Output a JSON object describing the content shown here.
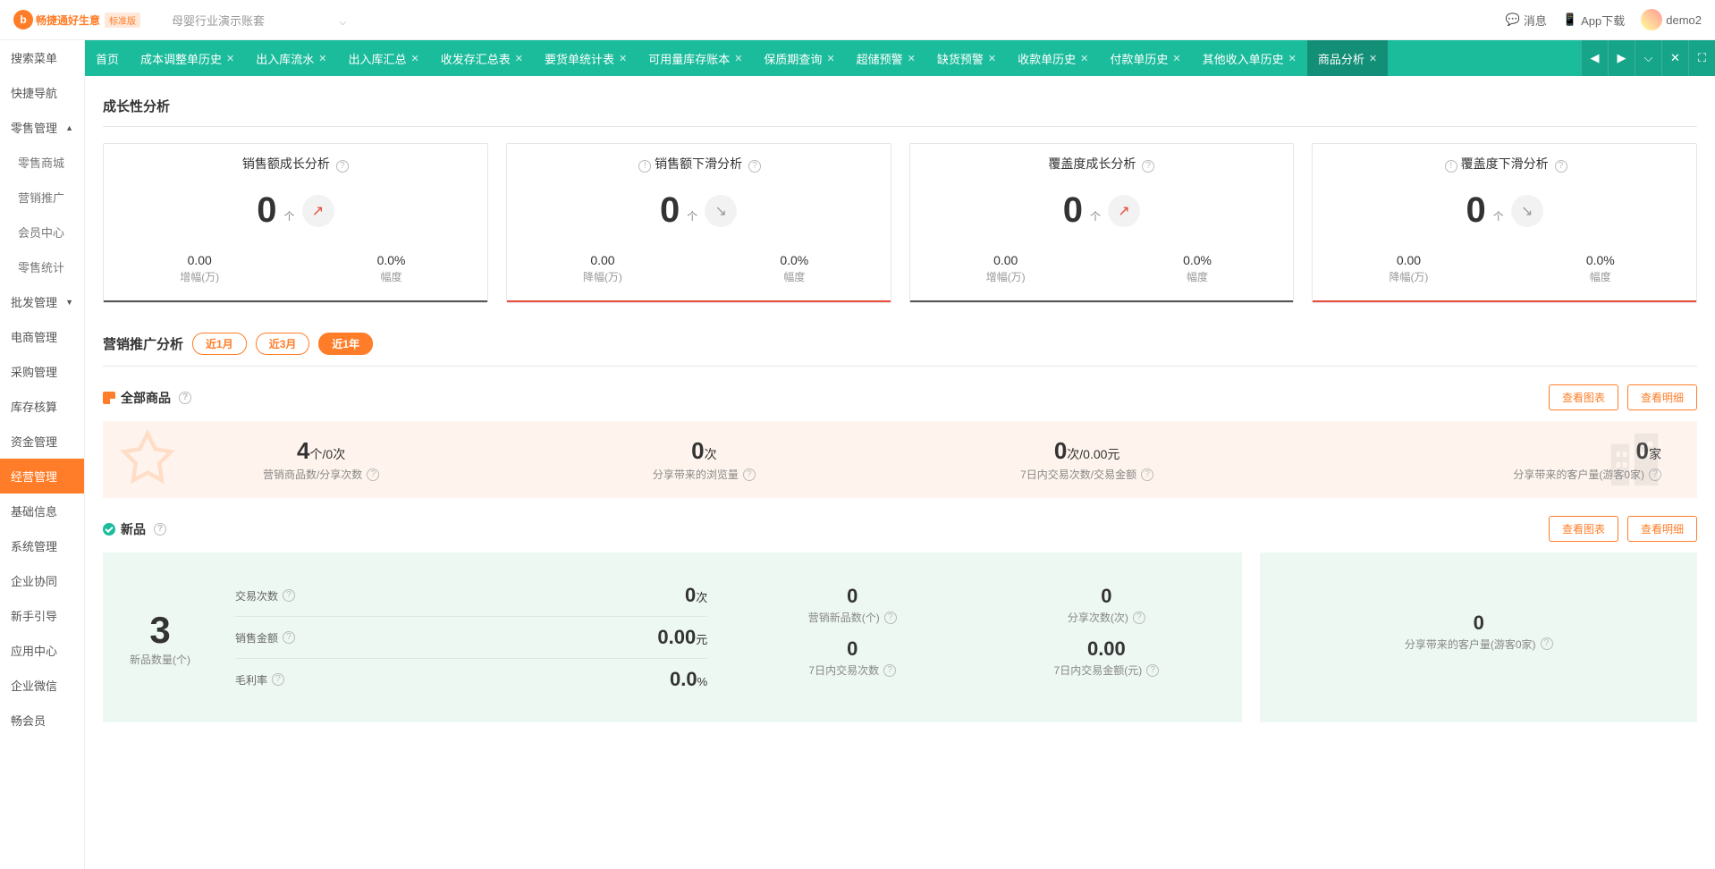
{
  "header": {
    "logo_text": "畅捷通好生意",
    "version_badge": "标准版",
    "account_name": "母婴行业演示账套",
    "messages_label": "消息",
    "app_download_label": "App下载",
    "username": "demo2"
  },
  "sidebar": {
    "items": [
      {
        "label": "搜索菜单",
        "type": "item"
      },
      {
        "label": "快捷导航",
        "type": "item"
      },
      {
        "label": "零售管理",
        "type": "expand",
        "expanded": true
      },
      {
        "label": "零售商城",
        "type": "sub"
      },
      {
        "label": "营销推广",
        "type": "sub"
      },
      {
        "label": "会员中心",
        "type": "sub"
      },
      {
        "label": "零售统计",
        "type": "sub"
      },
      {
        "label": "批发管理",
        "type": "expand",
        "expanded": false
      },
      {
        "label": "电商管理",
        "type": "item"
      },
      {
        "label": "采购管理",
        "type": "item"
      },
      {
        "label": "库存核算",
        "type": "item"
      },
      {
        "label": "资金管理",
        "type": "item"
      },
      {
        "label": "经营管理",
        "type": "active"
      },
      {
        "label": "基础信息",
        "type": "item"
      },
      {
        "label": "系统管理",
        "type": "item"
      },
      {
        "label": "企业协同",
        "type": "item"
      },
      {
        "label": "新手引导",
        "type": "item"
      },
      {
        "label": "应用中心",
        "type": "item"
      },
      {
        "label": "企业微信",
        "type": "item"
      },
      {
        "label": "畅会员",
        "type": "item"
      }
    ]
  },
  "tabs": {
    "home": "首页",
    "list": [
      "成本调整单历史",
      "出入库流水",
      "出入库汇总",
      "收发存汇总表",
      "要货单统计表",
      "可用量库存账本",
      "保质期查询",
      "超储预警",
      "缺货预警",
      "收款单历史",
      "付款单历史",
      "其他收入单历史",
      "商品分析"
    ],
    "active_index": 12
  },
  "section1": {
    "title": "成长性分析",
    "cards": [
      {
        "title": "销售额成长分析",
        "num": "0",
        "unit": "个",
        "trend": "up",
        "line": "gray",
        "stat1_val": "0.00",
        "stat1_label": "增幅(万)",
        "stat2_val": "0.0%",
        "stat2_label": "幅度",
        "has_icon": false
      },
      {
        "title": "销售额下滑分析",
        "num": "0",
        "unit": "个",
        "trend": "down",
        "line": "red",
        "stat1_val": "0.00",
        "stat1_label": "降幅(万)",
        "stat2_val": "0.0%",
        "stat2_label": "幅度",
        "has_icon": true
      },
      {
        "title": "覆盖度成长分析",
        "num": "0",
        "unit": "个",
        "trend": "up",
        "line": "gray",
        "stat1_val": "0.00",
        "stat1_label": "增幅(万)",
        "stat2_val": "0.0%",
        "stat2_label": "幅度",
        "has_icon": false
      },
      {
        "title": "覆盖度下滑分析",
        "num": "0",
        "unit": "个",
        "trend": "down",
        "line": "red",
        "stat1_val": "0.00",
        "stat1_label": "降幅(万)",
        "stat2_val": "0.0%",
        "stat2_label": "幅度",
        "has_icon": true
      }
    ]
  },
  "section2": {
    "title": "营销推广分析",
    "pills": [
      "近1月",
      "近3月",
      "近1年"
    ],
    "active_pill": 2,
    "view_chart_btn": "查看图表",
    "view_detail_btn": "查看明细"
  },
  "all_products": {
    "title": "全部商品",
    "cols": [
      {
        "main": "4",
        "suffix": "个/0次",
        "desc": "营销商品数/分享次数"
      },
      {
        "main": "0",
        "suffix": "次",
        "desc": "分享带来的浏览量"
      },
      {
        "main": "0",
        "suffix": "次/0.00元",
        "desc": "7日内交易次数/交易金额"
      },
      {
        "main": "0",
        "suffix": "家",
        "desc": "分享带来的客户量(游客0家)"
      }
    ]
  },
  "new_products": {
    "title": "新品",
    "main_num": "3",
    "main_label": "新品数量(个)",
    "rows": [
      {
        "label": "交易次数",
        "val": "0",
        "unit": "次"
      },
      {
        "label": "销售金额",
        "val": "0.00",
        "unit": "元"
      },
      {
        "label": "毛利率",
        "val": "0.0",
        "unit": "%"
      }
    ],
    "mid_cols": [
      {
        "val1": "0",
        "label1": "营销新品数(个)",
        "val2": "0",
        "label2": "7日内交易次数"
      },
      {
        "val1": "0",
        "label1": "分享次数(次)",
        "val2": "0.00",
        "label2": "7日内交易金额(元)"
      }
    ],
    "right_val": "0",
    "right_label": "分享带来的客户量(游客0家)"
  }
}
